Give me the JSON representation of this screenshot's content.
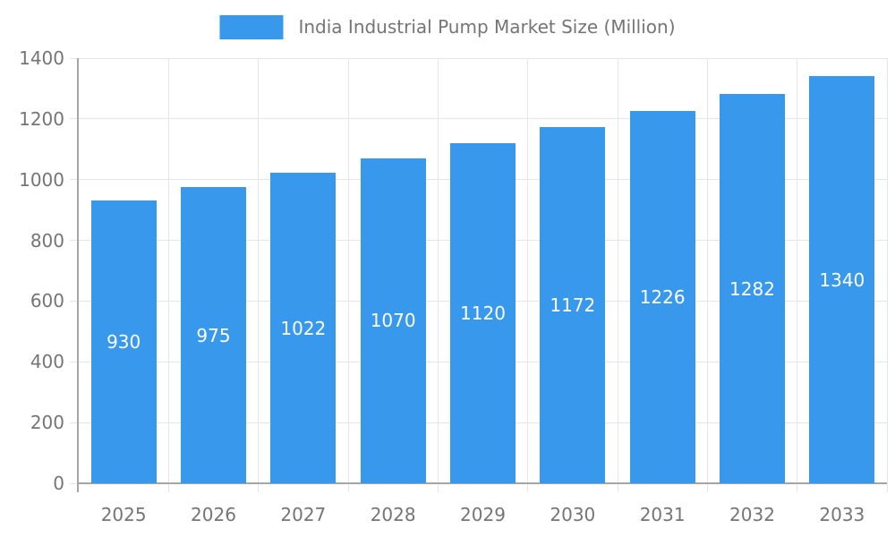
{
  "chart_data": {
    "type": "bar",
    "title": "India Industrial Pump Market Size (Million)",
    "categories": [
      "2025",
      "2026",
      "2027",
      "2028",
      "2029",
      "2030",
      "2031",
      "2032",
      "2033"
    ],
    "values": [
      930,
      975,
      1022,
      1070,
      1120,
      1172,
      1226,
      1282,
      1340
    ],
    "bar_labels": [
      "930",
      "975",
      "1022",
      "1070",
      "1120",
      "1172",
      "1226",
      "1282",
      "1340"
    ],
    "xlabel": "",
    "ylabel": "",
    "ylim": [
      0,
      1400
    ],
    "ytick_step": 200,
    "ytick_labels": [
      "0",
      "200",
      "400",
      "600",
      "800",
      "1000",
      "1200",
      "1400"
    ],
    "grid": true,
    "legend_position": "top",
    "colors": {
      "bar": "#3899ec",
      "bar_label_text": "#ffffff",
      "axis_text": "#757575",
      "gridline": "#e6e6e6",
      "axis_line": "#a6a6a6",
      "background": "#ffffff"
    }
  }
}
